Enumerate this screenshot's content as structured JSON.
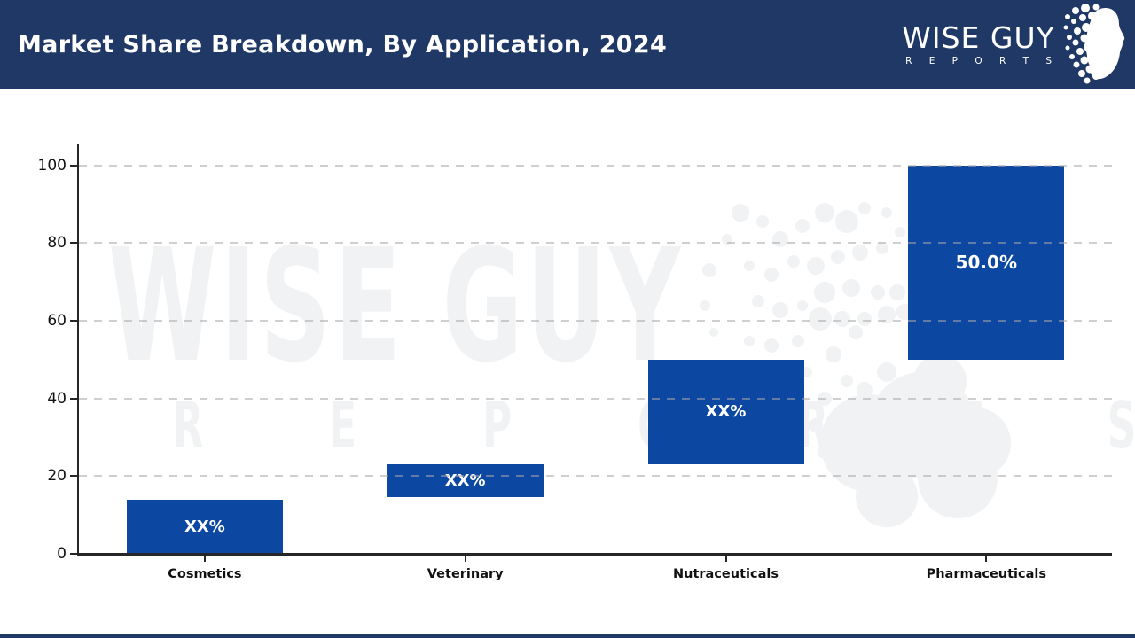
{
  "header": {
    "title": "Market Share Breakdown, By Application, 2024",
    "logo": {
      "line1": "WISE GUY",
      "line2": "R E P O R T S"
    }
  },
  "watermark": {
    "line1": "WISE GUY",
    "line2": "R E P O R T S"
  },
  "chart_data": {
    "type": "bar",
    "subtype": "floating-segment-waterfall",
    "title": "Market Share Breakdown, By Application, 2024",
    "categories": [
      "Cosmetics",
      "Veterinary",
      "Nutraceuticals",
      "Pharmaceuticals"
    ],
    "bars": [
      {
        "category": "Cosmetics",
        "from": 0,
        "to": 14,
        "label": "XX%"
      },
      {
        "category": "Veterinary",
        "from": 14.5,
        "to": 23,
        "label": "XX%"
      },
      {
        "category": "Nutraceuticals",
        "from": 23,
        "to": 50,
        "label": "XX%"
      },
      {
        "category": "Pharmaceuticals",
        "from": 50,
        "to": 100,
        "label": "50.0%"
      }
    ],
    "xlabel": "",
    "ylabel": "",
    "ylim": [
      0,
      100
    ],
    "yticks": [
      0,
      20,
      40,
      60,
      80,
      100
    ],
    "grid": "horizontal-dashed",
    "legend": "none",
    "bar_color": "#0c47a1"
  },
  "colors": {
    "header_bg": "#1f3865",
    "footer_bg": "#1f3865",
    "bar": "#0c47a1",
    "axis": "#262626",
    "gridline": "#cccccc",
    "watermark": "#f1f2f4",
    "title_text": "#ffffff",
    "bar_label_text": "#ffffff"
  }
}
